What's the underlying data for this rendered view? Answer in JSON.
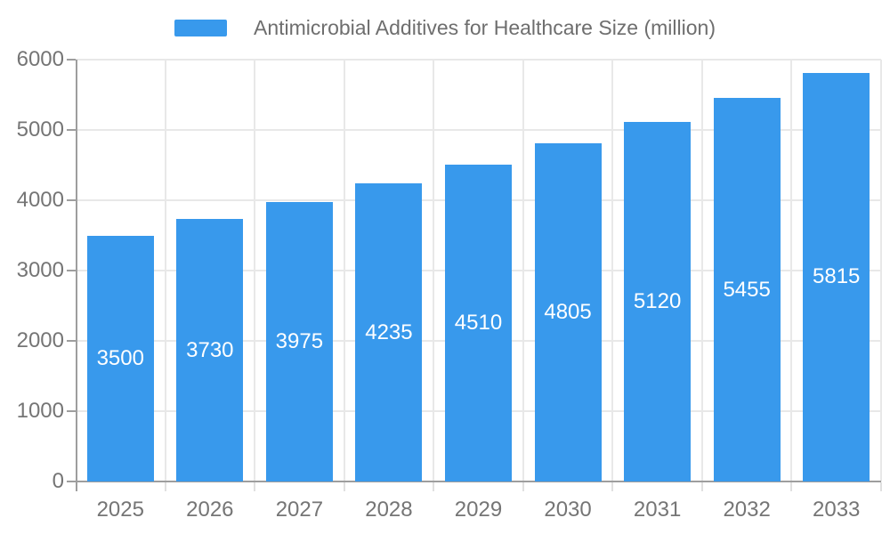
{
  "legend": {
    "items": [
      {
        "label": "Antimicrobial Additives for Healthcare Size (million)",
        "color": "#3899ec"
      }
    ]
  },
  "chart_data": {
    "type": "bar",
    "title": "Antimicrobial Additives for Healthcare Size (million)",
    "categories": [
      "2025",
      "2026",
      "2027",
      "2028",
      "2029",
      "2030",
      "2031",
      "2032",
      "2033"
    ],
    "values": [
      3500,
      3730,
      3975,
      4235,
      4510,
      4805,
      5120,
      5455,
      5815
    ],
    "value_labels": [
      "3500",
      "3730",
      "3975",
      "4235",
      "4510",
      "4805",
      "5120",
      "5455",
      "5815"
    ],
    "xlabel": "",
    "ylabel": "",
    "ylim": [
      0,
      6000
    ],
    "yticks": [
      0,
      1000,
      2000,
      3000,
      4000,
      5000,
      6000
    ],
    "ytick_labels": [
      "0",
      "1000",
      "2000",
      "3000",
      "4000",
      "5000",
      "6000"
    ],
    "grid": true,
    "legend_position": "top",
    "bar_color": "#3899ec",
    "value_label_color": "#ffffff"
  },
  "colors": {
    "background": "#ffffff",
    "bar": "#3899ec",
    "grid": "#e8e8e8",
    "axis": "#9e9e9e",
    "minor_tick": "#e0e0e0",
    "axis_text": "#757575",
    "legend_text": "#6e6e6e",
    "value_text": "#ffffff"
  }
}
